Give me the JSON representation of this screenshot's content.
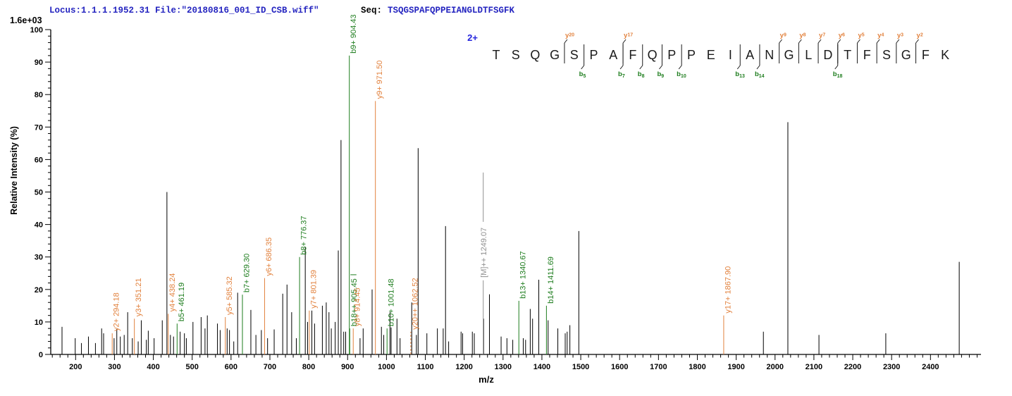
{
  "header": {
    "locus_file": "Locus:1.1.1.1952.31 File:\"20180816_001_ID_CSB.wiff\"",
    "seq_label": "Seq:",
    "sequence": "TSQGSPAFQPPEIANGLDTFSGFK",
    "scale_label": "1.6e+03"
  },
  "sequence_panel": {
    "charge_label": "2+",
    "residues": "TSQGSPAFQPPEIANGLDTFSGFK",
    "y_ion_markers": [
      {
        "label": "y20",
        "before_residue": 4
      },
      {
        "label": "y17",
        "before_residue": 7
      },
      {
        "label": "y9",
        "before_residue": 15
      },
      {
        "label": "y8",
        "before_residue": 16
      },
      {
        "label": "y7",
        "before_residue": 17
      },
      {
        "label": "y6",
        "before_residue": 18
      },
      {
        "label": "y5",
        "before_residue": 19
      },
      {
        "label": "y4",
        "before_residue": 20
      },
      {
        "label": "y3",
        "before_residue": 21
      },
      {
        "label": "y2",
        "before_residue": 22
      }
    ],
    "b_ion_markers": [
      {
        "label": "b5",
        "after_residue": 4
      },
      {
        "label": "b7",
        "after_residue": 6
      },
      {
        "label": "b8",
        "after_residue": 7
      },
      {
        "label": "b9",
        "after_residue": 8
      },
      {
        "label": "b10",
        "after_residue": 9
      },
      {
        "label": "b13",
        "after_residue": 12
      },
      {
        "label": "b14",
        "after_residue": 13
      },
      {
        "label": "b18",
        "after_residue": 17
      }
    ]
  },
  "colors": {
    "y_ion": "#e2823e",
    "b_ion": "#1e7d1e",
    "precursor": "#8f8f8f",
    "peak": "#000000",
    "header_text": "#2525c0",
    "charge_label": "#2424dd",
    "marker": "#1a1a1a"
  },
  "axes": {
    "x": {
      "label": "m/z",
      "min": 136,
      "max": 2530,
      "tick_label_start": 200,
      "tick_label_end": 2400,
      "major_step": 100,
      "minor_step": 20
    },
    "y": {
      "label": "Relative  Intensity (%)",
      "min": 0,
      "max": 100,
      "major_step": 10,
      "minor_step": 2
    }
  },
  "chart_data": {
    "type": "bar",
    "xlabel": "m/z",
    "ylabel": "Relative  Intensity (%)",
    "xlim": [
      136,
      2530
    ],
    "ylim": [
      0,
      100
    ],
    "full_scale_intensity": "1.6e+03",
    "precursor_charge": "2+",
    "peptide_sequence": "TSQGSPAFQPPEIANGLDTFSGFK",
    "annotated_peaks": [
      {
        "label": "y2+ 294.18",
        "mz": 294.18,
        "intensity": 6.5,
        "series": "y"
      },
      {
        "label": "y3+ 351.21",
        "mz": 351.21,
        "intensity": 11,
        "series": "y"
      },
      {
        "label": "y4+ 438.24",
        "mz": 438.24,
        "intensity": 12.5,
        "series": "y"
      },
      {
        "label": "b5+ 461.19",
        "mz": 461.19,
        "intensity": 9.5,
        "series": "b"
      },
      {
        "label": "y5+ 585.32",
        "mz": 585.32,
        "intensity": 11.5,
        "series": "y"
      },
      {
        "label": "b7+ 629.30",
        "mz": 629.3,
        "intensity": 18.4,
        "series": "b"
      },
      {
        "label": "y6+ 686.35",
        "mz": 686.35,
        "intensity": 23.5,
        "series": "y"
      },
      {
        "label": "b8+ 776.37",
        "mz": 776.37,
        "intensity": 30,
        "series": "b"
      },
      {
        "label": "y7+ 801.39",
        "mz": 801.39,
        "intensity": 13.5,
        "series": "y"
      },
      {
        "label": "b9+ 904.43",
        "mz": 904.43,
        "intensity": 92,
        "series": "b"
      },
      {
        "label": "b18++ 905.45",
        "mz": 905.45,
        "intensity": 8,
        "series": "b",
        "leader": true
      },
      {
        "label": "y8+ 914.45",
        "mz": 914.45,
        "intensity": 8,
        "series": "y"
      },
      {
        "label": "y9+ 971.50",
        "mz": 971.5,
        "intensity": 78,
        "series": "y"
      },
      {
        "label": "b10+ 1001.48",
        "mz": 1001.48,
        "intensity": 8,
        "series": "b"
      },
      {
        "label": "y20++ 1062.52",
        "mz": 1062.52,
        "intensity": 7,
        "series": "y",
        "dashed": true
      },
      {
        "label": "[M]++ 1249.07",
        "mz": 1249.07,
        "intensity": 56,
        "series": "precursor",
        "label_inline": true
      },
      {
        "label": "b13+ 1340.67",
        "mz": 1340.67,
        "intensity": 16.5,
        "series": "b"
      },
      {
        "label": "b14+ 1411.69",
        "mz": 1411.69,
        "intensity": 15,
        "series": "b"
      },
      {
        "label": "y17+ 1867.90",
        "mz": 1867.9,
        "intensity": 12,
        "series": "y"
      }
    ],
    "unlabeled_peaks": [
      [
        165,
        8.5
      ],
      [
        199,
        5
      ],
      [
        215,
        3.5
      ],
      [
        233,
        5.5
      ],
      [
        251,
        3.5
      ],
      [
        267,
        8
      ],
      [
        272,
        6.5
      ],
      [
        299,
        5
      ],
      [
        306,
        7.8
      ],
      [
        315,
        5.5
      ],
      [
        325,
        6
      ],
      [
        334,
        13
      ],
      [
        346,
        5
      ],
      [
        361,
        4
      ],
      [
        369,
        10.5
      ],
      [
        382,
        4.5
      ],
      [
        387,
        7.3
      ],
      [
        402,
        5
      ],
      [
        423,
        10.5
      ],
      [
        435,
        50
      ],
      [
        444,
        6
      ],
      [
        452,
        5.5
      ],
      [
        469,
        7
      ],
      [
        480,
        6.5
      ],
      [
        485,
        5
      ],
      [
        502,
        10
      ],
      [
        523,
        11.5
      ],
      [
        533,
        8
      ],
      [
        539,
        12
      ],
      [
        565,
        9.5
      ],
      [
        572,
        7.5
      ],
      [
        590,
        8
      ],
      [
        596,
        7.5
      ],
      [
        607,
        4
      ],
      [
        617,
        19
      ],
      [
        651,
        13.7
      ],
      [
        664,
        6
      ],
      [
        678,
        7.5
      ],
      [
        694,
        5
      ],
      [
        711,
        7.7
      ],
      [
        733,
        18.7
      ],
      [
        744,
        21.5
      ],
      [
        756,
        13
      ],
      [
        768,
        5
      ],
      [
        791,
        33
      ],
      [
        797,
        10
      ],
      [
        808,
        13.5
      ],
      [
        815,
        9.5
      ],
      [
        835,
        15
      ],
      [
        845,
        16
      ],
      [
        852,
        13
      ],
      [
        858,
        8
      ],
      [
        868,
        10
      ],
      [
        876,
        32
      ],
      [
        883,
        66
      ],
      [
        890,
        7
      ],
      [
        895,
        7
      ],
      [
        932,
        5
      ],
      [
        940,
        8
      ],
      [
        963,
        20
      ],
      [
        987,
        8.5
      ],
      [
        993,
        6
      ],
      [
        1009,
        13
      ],
      [
        1012,
        8.3
      ],
      [
        1027,
        11
      ],
      [
        1035,
        5
      ],
      [
        1065,
        16
      ],
      [
        1077,
        6
      ],
      [
        1081.5,
        63.5
      ],
      [
        1104,
        6.5
      ],
      [
        1131,
        8
      ],
      [
        1146,
        8
      ],
      [
        1152,
        39.5
      ],
      [
        1160,
        4
      ],
      [
        1192,
        7
      ],
      [
        1196,
        6.5
      ],
      [
        1221,
        7
      ],
      [
        1226,
        6.5
      ],
      [
        1250,
        11
      ],
      [
        1265,
        18.5
      ],
      [
        1295,
        5.5
      ],
      [
        1310,
        5
      ],
      [
        1325,
        4.5
      ],
      [
        1352,
        5
      ],
      [
        1358,
        4.5
      ],
      [
        1370,
        14
      ],
      [
        1376,
        11
      ],
      [
        1392,
        23
      ],
      [
        1416,
        10.5
      ],
      [
        1441,
        8
      ],
      [
        1460,
        6.5
      ],
      [
        1465,
        7
      ],
      [
        1472,
        9
      ],
      [
        1495,
        38
      ],
      [
        1970,
        7
      ],
      [
        2033,
        71.5
      ],
      [
        2113,
        6
      ],
      [
        2285,
        6.5
      ],
      [
        2474,
        28.5
      ]
    ]
  }
}
